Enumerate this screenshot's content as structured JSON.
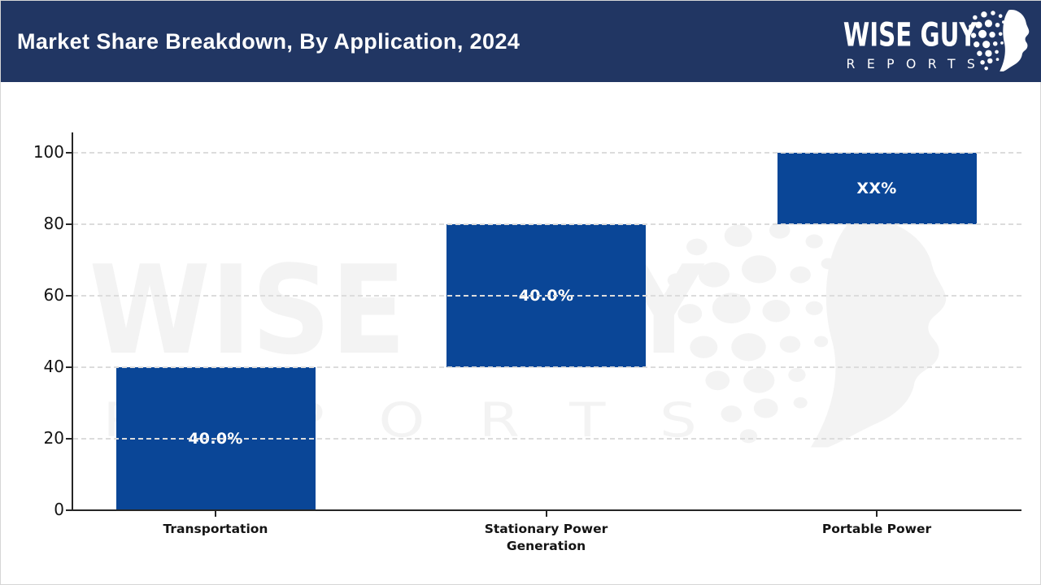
{
  "header": {
    "title": "Market Share Breakdown, By Application, 2024",
    "background_color": "#213663",
    "logo": {
      "line1": "WISE GUY",
      "line2": "REPORTS"
    }
  },
  "watermark": {
    "text": "WISE GUY REPORTS"
  },
  "chart_data": {
    "type": "bar",
    "variant": "stacked-waterfall",
    "title": "Market Share Breakdown, By Application, 2024",
    "categories": [
      "Transportation",
      "Stationary Power Generation",
      "Portable Power"
    ],
    "bars": [
      {
        "category": "Transportation",
        "start": 0,
        "end": 40,
        "label": "40.0%"
      },
      {
        "category": "Stationary Power Generation",
        "start": 40,
        "end": 80,
        "label": "40.0%"
      },
      {
        "category": "Portable Power",
        "start": 80,
        "end": 100,
        "label": "XX%"
      }
    ],
    "values": [
      40,
      40,
      20
    ],
    "ylim": [
      0,
      100
    ],
    "yticks": [
      0,
      20,
      40,
      60,
      80,
      100
    ],
    "xlabel": "",
    "ylabel": "",
    "grid": "horizontal-dashed",
    "legend": "none",
    "bar_color": "#0a4697",
    "bar_label_color": "#ffffff",
    "axis_color": "#262626",
    "gridline_color": "#dcdcdc"
  }
}
